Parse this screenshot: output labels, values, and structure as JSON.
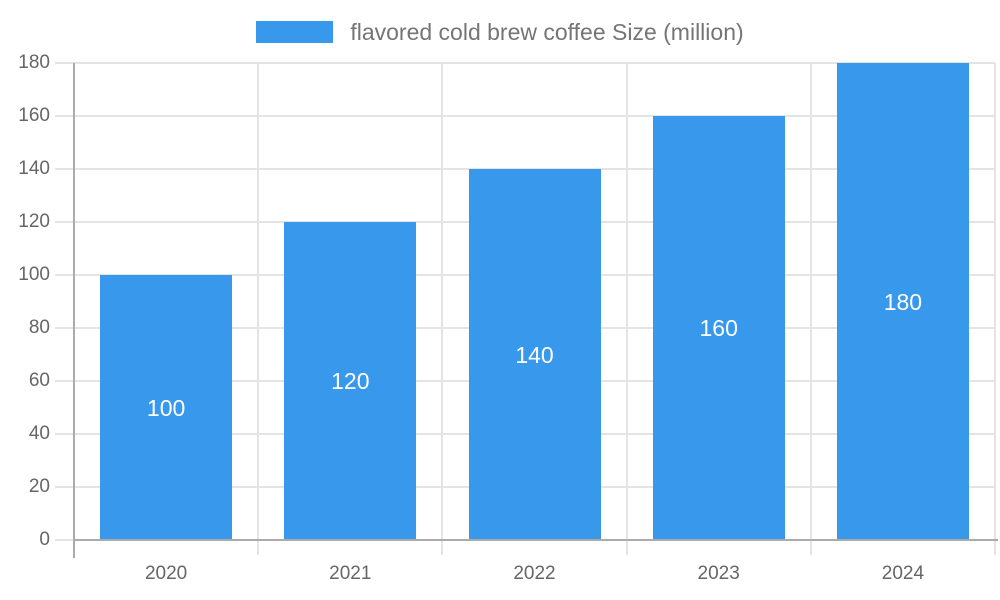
{
  "legend": {
    "label": "flavored cold brew coffee Size (million)"
  },
  "colors": {
    "bar": "#3899EC",
    "grid": "#e4e4e4",
    "axis": "#ababab",
    "tick_label": "#666666",
    "legend_text": "#757575",
    "value_label": "#ffffff",
    "background": "#ffffff"
  },
  "chart_data": {
    "type": "bar",
    "title": "",
    "xlabel": "",
    "ylabel": "",
    "categories": [
      "2020",
      "2021",
      "2022",
      "2023",
      "2024"
    ],
    "series": [
      {
        "name": "flavored cold brew coffee Size (million)",
        "values": [
          100,
          120,
          140,
          160,
          180
        ]
      }
    ],
    "bar_value_labels": [
      "100",
      "120",
      "140",
      "160",
      "180"
    ],
    "ylim": [
      0,
      180
    ],
    "yticks": [
      0,
      20,
      40,
      60,
      80,
      100,
      120,
      140,
      160,
      180
    ],
    "grid": true,
    "grid_orientation": "both",
    "legend_position": "top",
    "value_labels_inside_bars": true
  }
}
